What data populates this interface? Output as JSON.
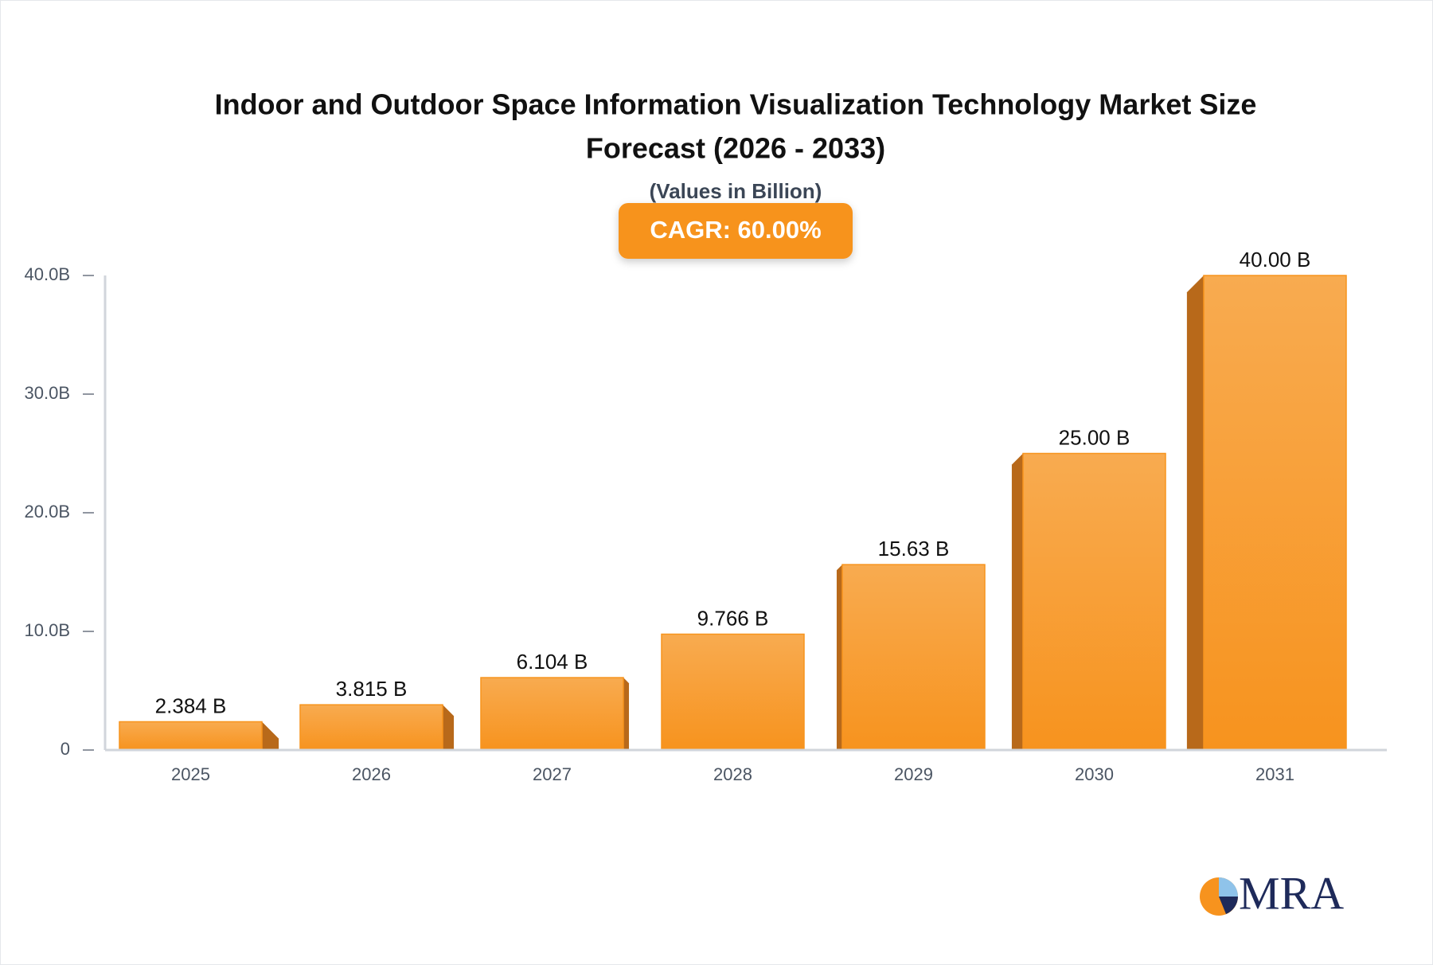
{
  "chart_data": {
    "type": "bar",
    "title": "Indoor and Outdoor Space Information Visualization Technology Market Size",
    "title_line2": "Forecast (2026 - 2033)",
    "subtitle": "(Values in Billion)",
    "annotation": "CAGR: 60.00%",
    "categories": [
      "2025",
      "2026",
      "2027",
      "2028",
      "2029",
      "2030",
      "2031"
    ],
    "values": [
      2.384,
      3.815,
      6.104,
      9.766,
      15.63,
      25.0,
      40.0
    ],
    "value_labels": [
      "2.384 B",
      "3.815 B",
      "6.104 B",
      "9.766 B",
      "15.63 B",
      "25.00 B",
      "40.00 B"
    ],
    "color": "#f7941d",
    "ylim": [
      0,
      40
    ],
    "yticks": [
      0,
      {
        "value": 10,
        "label": "10.0B"
      },
      {
        "value": 20,
        "label": "20.0B"
      },
      {
        "value": 30,
        "label": "30.0B"
      },
      {
        "value": 40,
        "label": "40.0B"
      }
    ],
    "grid": false
  },
  "logo": "MRA"
}
